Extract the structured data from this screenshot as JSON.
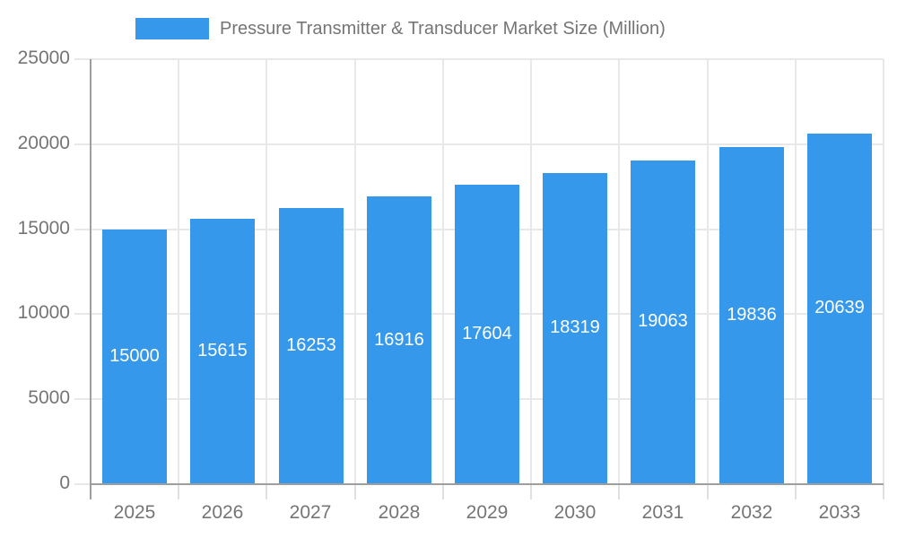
{
  "legend": {
    "label": "Pressure Transmitter & Transducer Market Size (Million)"
  },
  "colors": {
    "bar": "#3598EA",
    "grid": "#e8e8e8",
    "axis": "#9e9e9e",
    "text": "#757575",
    "bar_label": "#ffffff",
    "background": "#ffffff"
  },
  "chart_data": {
    "type": "bar",
    "title": "Pressure Transmitter & Transducer Market Size (Million)",
    "categories": [
      "2025",
      "2026",
      "2027",
      "2028",
      "2029",
      "2030",
      "2031",
      "2032",
      "2033"
    ],
    "values": [
      15000,
      15615,
      16253,
      16916,
      17604,
      18319,
      19063,
      19836,
      20639
    ],
    "series": [
      {
        "name": "Pressure Transmitter & Transducer Market Size (Million)",
        "values": [
          15000,
          15615,
          16253,
          16916,
          17604,
          18319,
          19063,
          19836,
          20639
        ]
      }
    ],
    "xlabel": "",
    "ylabel": "",
    "ylim": [
      0,
      25000
    ],
    "yticks": [
      0,
      5000,
      10000,
      15000,
      20000,
      25000
    ],
    "ytick_labels": [
      "0",
      "5000",
      "10000",
      "15000",
      "20000",
      "25000"
    ],
    "grid": true,
    "legend_position": "top",
    "bar_label_position": "inside-center"
  }
}
